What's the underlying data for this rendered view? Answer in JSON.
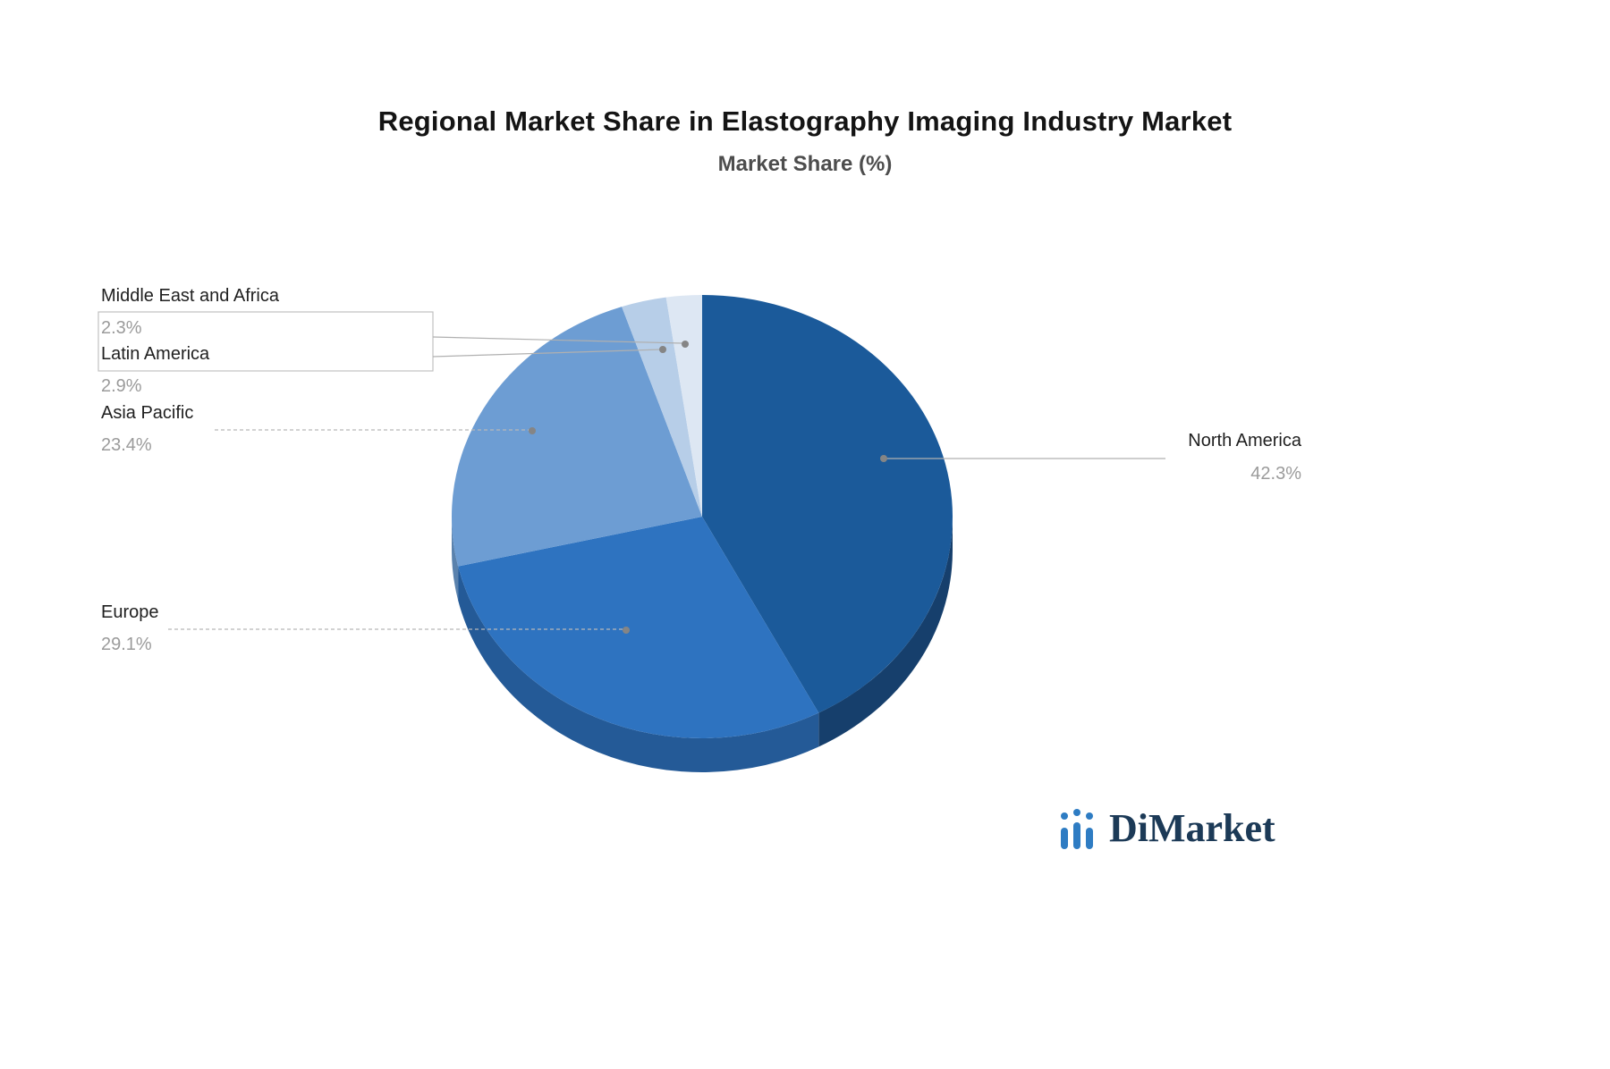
{
  "header": {
    "title": "Regional Market Share in Elastography Imaging Industry Market",
    "subtitle": "Market Share (%)"
  },
  "chart_data": {
    "type": "pie",
    "title": "Regional Market Share in Elastography Imaging Industry Market",
    "subtitle": "Market Share (%)",
    "labels": [
      "North America",
      "Europe",
      "Asia Pacific",
      "Latin America",
      "Middle East and Africa"
    ],
    "values": [
      42.3,
      29.1,
      23.4,
      2.9,
      2.3
    ],
    "value_labels": [
      "42.3%",
      "29.1%",
      "23.4%",
      "2.9%",
      "2.3%"
    ],
    "colors": [
      "#1b5a9a",
      "#2e73c0",
      "#6d9dd3",
      "#b7cee8",
      "#dde7f3"
    ],
    "side_colors": [
      "#163f6c",
      "#245a97",
      "#5a82ad",
      "#93a9c2",
      "#b4c1d1"
    ],
    "start_angle_deg": 0,
    "direction": "clockwise",
    "effect": "3d",
    "legend_position": "none",
    "label_style": "callout"
  },
  "branding": {
    "logo_text": "DiMarket",
    "logo_icon": "bar-chart-icon",
    "logo_icon_color": "#2e7cc3",
    "logo_text_color": "#1c3a57"
  }
}
